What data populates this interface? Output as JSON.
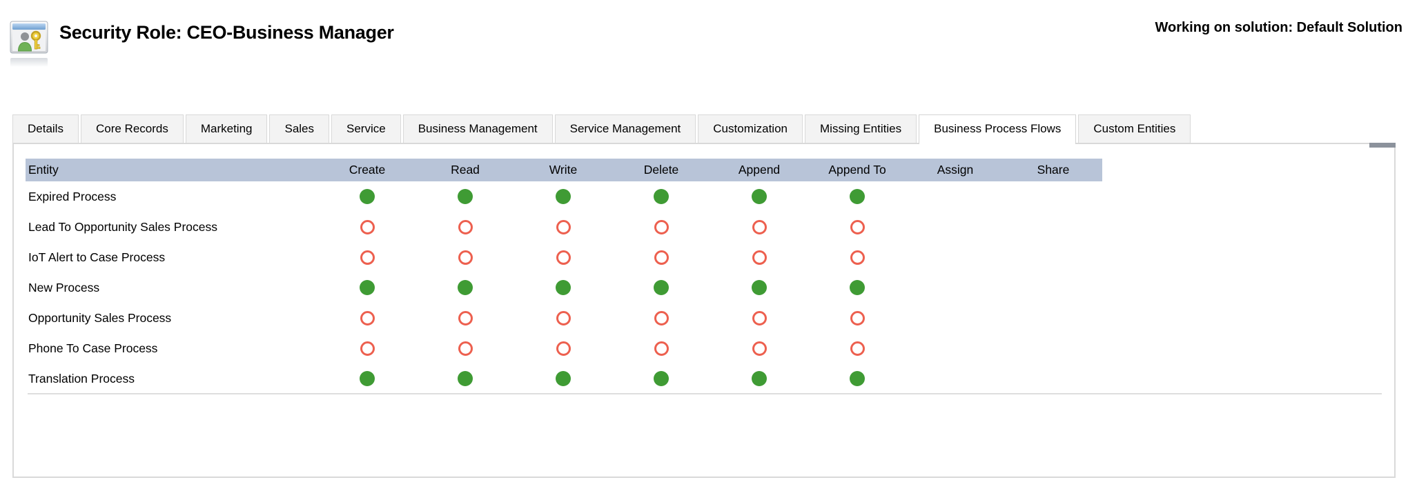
{
  "header": {
    "icon": "security-role-icon",
    "title": "Security Role: CEO-Business Manager",
    "working_on": "Working on solution: Default Solution"
  },
  "tabs": [
    {
      "label": "Details",
      "active": false
    },
    {
      "label": "Core Records",
      "active": false
    },
    {
      "label": "Marketing",
      "active": false
    },
    {
      "label": "Sales",
      "active": false
    },
    {
      "label": "Service",
      "active": false
    },
    {
      "label": "Business Management",
      "active": false
    },
    {
      "label": "Service Management",
      "active": false
    },
    {
      "label": "Customization",
      "active": false
    },
    {
      "label": "Missing Entities",
      "active": false
    },
    {
      "label": "Business Process Flows",
      "active": true
    },
    {
      "label": "Custom Entities",
      "active": false
    }
  ],
  "grid": {
    "columns": [
      "Entity",
      "Create",
      "Read",
      "Write",
      "Delete",
      "Append",
      "Append To",
      "Assign",
      "Share"
    ],
    "rows": [
      {
        "entity": "Expired Process",
        "permissions": [
          "full",
          "full",
          "full",
          "full",
          "full",
          "full",
          null,
          null
        ]
      },
      {
        "entity": "Lead To Opportunity Sales Process",
        "permissions": [
          "none",
          "none",
          "none",
          "none",
          "none",
          "none",
          null,
          null
        ]
      },
      {
        "entity": "IoT Alert to Case Process",
        "permissions": [
          "none",
          "none",
          "none",
          "none",
          "none",
          "none",
          null,
          null
        ]
      },
      {
        "entity": "New Process",
        "permissions": [
          "full",
          "full",
          "full",
          "full",
          "full",
          "full",
          null,
          null
        ]
      },
      {
        "entity": "Opportunity Sales Process",
        "permissions": [
          "none",
          "none",
          "none",
          "none",
          "none",
          "none",
          null,
          null
        ]
      },
      {
        "entity": "Phone To Case Process",
        "permissions": [
          "none",
          "none",
          "none",
          "none",
          "none",
          "none",
          null,
          null
        ]
      },
      {
        "entity": "Translation Process",
        "permissions": [
          "full",
          "full",
          "full",
          "full",
          "full",
          "full",
          null,
          null
        ]
      }
    ]
  },
  "legend": {
    "full_color": "#3f9b34",
    "none_color": "#ed604f",
    "header_band_color": "#b8c4d8"
  }
}
